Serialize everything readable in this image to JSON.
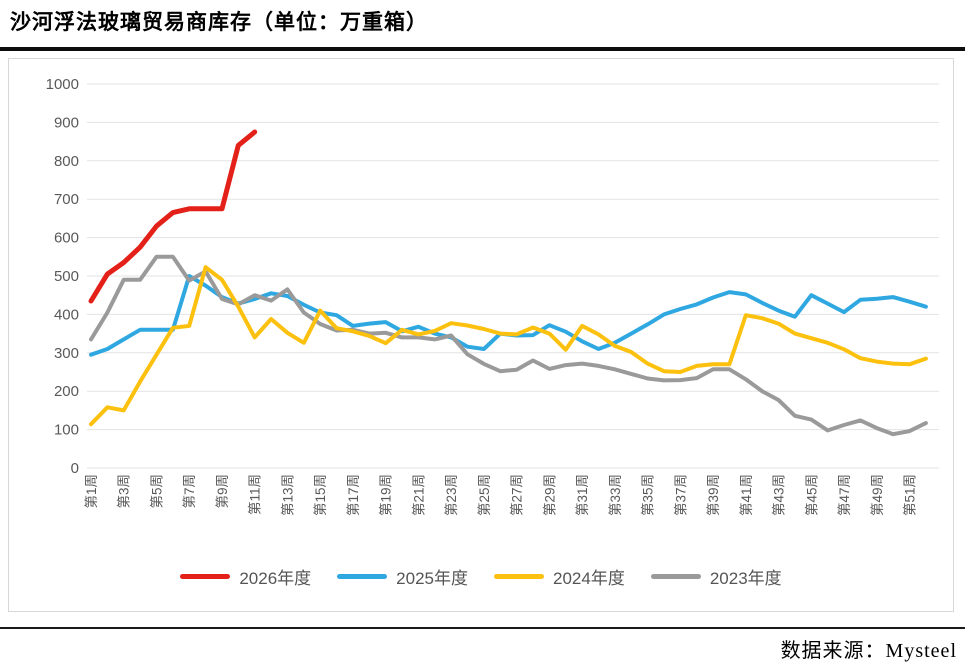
{
  "title": "沙河浮法玻璃贸易商库存（单位：万重箱）",
  "footer": {
    "source": "数据来源：Mysteel"
  },
  "colors": {
    "red_2026": "#e32119",
    "blue_2025": "#2fa8e1",
    "yellow_2024": "#fcc00e",
    "gray_2023": "#9a9a9a",
    "grid": "#e3e3e3",
    "axis_text": "#595959",
    "frame_border": "#d8d8d8",
    "rule_black": "#0d0d0d"
  },
  "chart_data": {
    "type": "line",
    "title": "沙河浮法玻璃贸易商库存（单位：万重箱）",
    "unit": "万重箱",
    "grid": "horizontal",
    "legend_position": "bottom-center",
    "x_axis": {
      "weeks_total": 52,
      "tick_labels": [
        "第1周",
        "第3周",
        "第5周",
        "第7周",
        "第9周",
        "第11周",
        "第13周",
        "第15周",
        "第17周",
        "第19周",
        "第21周",
        "第23周",
        "第25周",
        "第27周",
        "第29周",
        "第31周",
        "第33周",
        "第35周",
        "第37周",
        "第39周",
        "第41周",
        "第43周",
        "第45周",
        "第47周",
        "第49周",
        "第51周"
      ]
    },
    "y_axis": {
      "min": 0,
      "max": 1000,
      "step": 100,
      "ticks": [
        0,
        100,
        200,
        300,
        400,
        500,
        600,
        700,
        800,
        900,
        1000
      ]
    },
    "series": [
      {
        "name": "2026年度",
        "color": "#e32119",
        "width": 5,
        "values": [
          435,
          505,
          535,
          575,
          630,
          665,
          675,
          675,
          675,
          840,
          875
        ]
      },
      {
        "name": "2025年度",
        "color": "#2fa8e1",
        "width": 4,
        "values": [
          295,
          310,
          335,
          360,
          360,
          360,
          500,
          475,
          445,
          428,
          440,
          455,
          448,
          425,
          405,
          398,
          370,
          376,
          380,
          356,
          368,
          350,
          340,
          316,
          310,
          350,
          345,
          346,
          372,
          355,
          330,
          310,
          326,
          350,
          374,
          400,
          414,
          426,
          444,
          458,
          452,
          430,
          410,
          394,
          450,
          428,
          406,
          438,
          441,
          445,
          433,
          420
        ]
      },
      {
        "name": "2024年度",
        "color": "#fcc00e",
        "width": 4,
        "values": [
          114,
          158,
          150,
          225,
          295,
          365,
          370,
          523,
          490,
          420,
          340,
          388,
          352,
          326,
          410,
          364,
          356,
          344,
          325,
          360,
          348,
          357,
          377,
          371,
          362,
          350,
          348,
          366,
          350,
          308,
          370,
          348,
          318,
          302,
          272,
          252,
          250,
          266,
          270,
          270,
          398,
          390,
          376,
          350,
          338,
          326,
          309,
          286,
          277,
          272,
          270,
          285
        ]
      },
      {
        "name": "2023年度",
        "color": "#9a9a9a",
        "width": 4,
        "values": [
          335,
          405,
          490,
          490,
          550,
          550,
          488,
          512,
          440,
          426,
          450,
          436,
          465,
          405,
          375,
          358,
          360,
          350,
          352,
          340,
          340,
          335,
          345,
          296,
          271,
          252,
          256,
          280,
          258,
          268,
          272,
          266,
          257,
          245,
          233,
          228,
          229,
          234,
          257,
          257,
          231,
          200,
          177,
          136,
          126,
          98,
          112,
          124,
          104,
          88,
          96,
          117
        ]
      }
    ],
    "draw_order": [
      1,
      3,
      2,
      0
    ]
  }
}
